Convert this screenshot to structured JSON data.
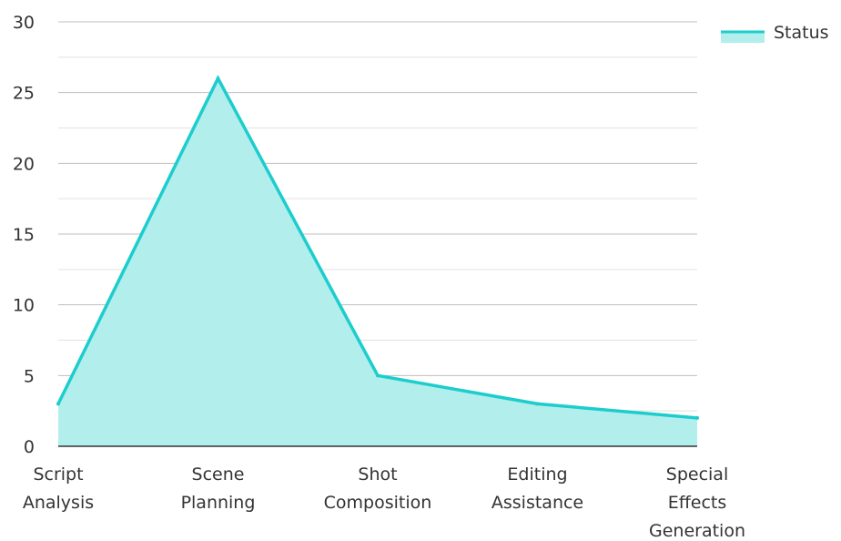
{
  "chart_data": {
    "type": "area",
    "categories": [
      [
        "Script",
        "Analysis"
      ],
      [
        "Scene",
        "Planning"
      ],
      [
        "Shot",
        "Composition"
      ],
      [
        "Editing",
        "Assistance"
      ],
      [
        "Special",
        "Effects",
        "Generation"
      ]
    ],
    "series": [
      {
        "name": "Status",
        "values": [
          3,
          26,
          5,
          3,
          2
        ]
      }
    ],
    "y_ticks": [
      "0",
      "5",
      "10",
      "15",
      "20",
      "25",
      "30"
    ],
    "ylim": [
      0,
      30
    ],
    "grid": true,
    "legend_position": "top-right",
    "colors": {
      "line": "#1dcdcd",
      "fill": "#b2eeec",
      "grid": "#cccccc",
      "axis": "#333333",
      "text": "#333333"
    }
  }
}
